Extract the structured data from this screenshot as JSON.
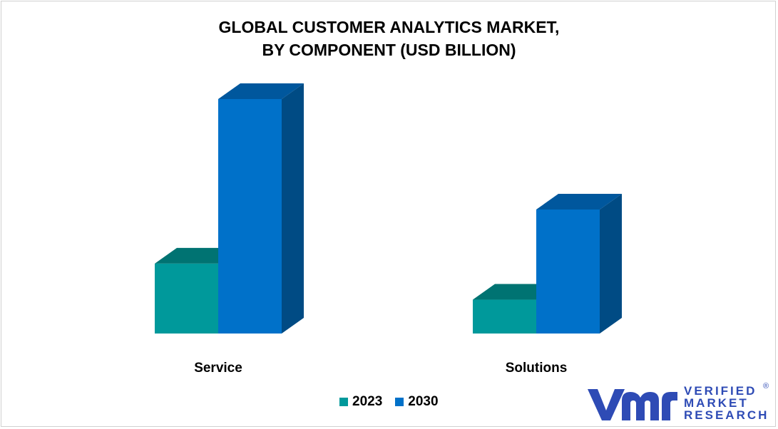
{
  "chart_data": {
    "type": "bar",
    "title_lines": [
      "GLOBAL CUSTOMER ANALYTICS MARKET,",
      "BY COMPONENT (USD BILLION)"
    ],
    "categories": [
      "Service",
      "Solutions"
    ],
    "series": [
      {
        "name": "2023",
        "values": [
          3.1,
          1.5
        ]
      },
      {
        "name": "2030",
        "values": [
          10.4,
          5.5
        ]
      }
    ],
    "ylim": [
      0,
      11
    ],
    "grid": false,
    "legend_position": "bottom",
    "colors": {
      "2023": {
        "front": "#00999b",
        "top": "#007372",
        "side": "#006766"
      },
      "2030": {
        "front": "#0071c9",
        "top": "#00579d",
        "side": "#004b84"
      }
    }
  },
  "logo": {
    "mark": "vmr",
    "lines": [
      "VERIFIED",
      "MARKET",
      "RESEARCH"
    ],
    "registered": "®",
    "color": "#2e4bb5"
  }
}
